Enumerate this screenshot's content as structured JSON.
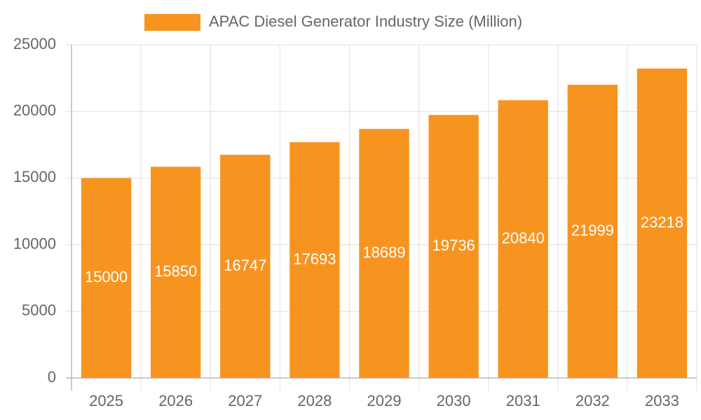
{
  "chart_data": {
    "type": "bar",
    "categories": [
      "2025",
      "2026",
      "2027",
      "2028",
      "2029",
      "2030",
      "2031",
      "2032",
      "2033"
    ],
    "series": [
      {
        "name": "APAC Diesel Generator Industry Size (Million)",
        "color": "#f79420",
        "values": [
          15000,
          15850,
          16747,
          17693,
          18689,
          19736,
          20840,
          21999,
          23218
        ]
      }
    ],
    "ylim": [
      0,
      25000
    ],
    "yticks": [
      0,
      5000,
      10000,
      15000,
      20000,
      25000
    ],
    "grid": true
  }
}
